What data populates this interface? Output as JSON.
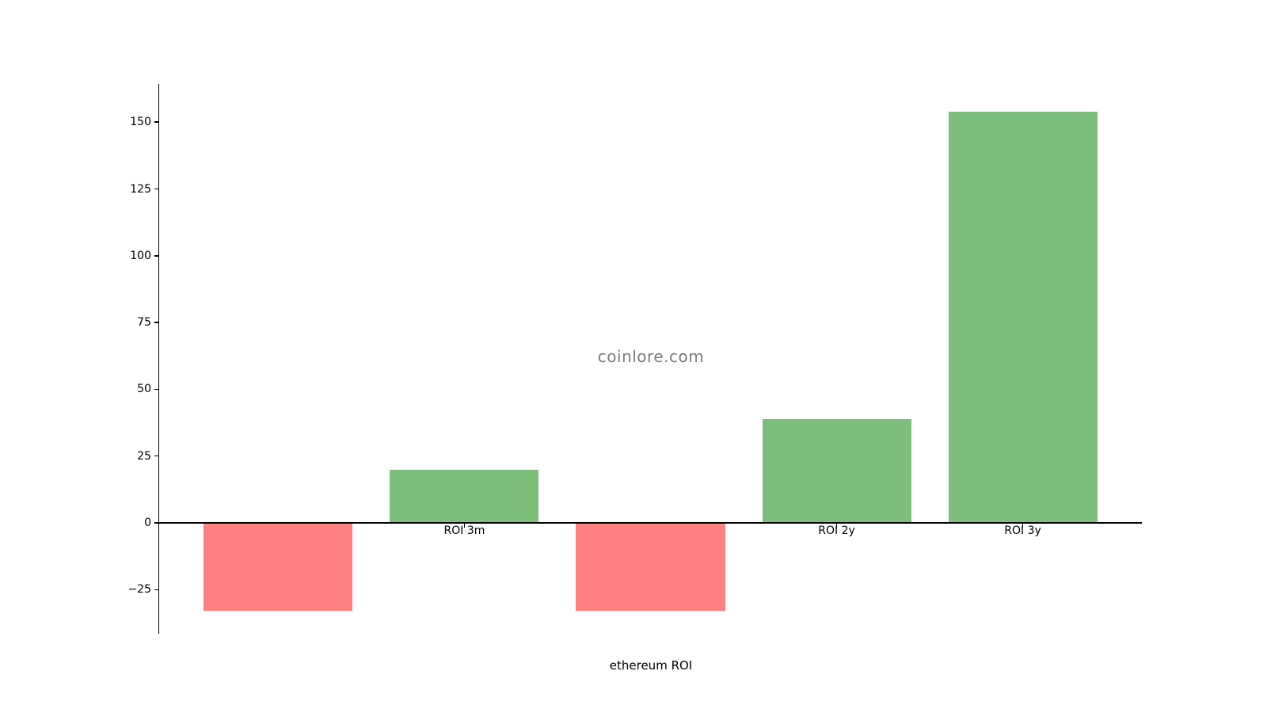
{
  "page": {
    "background_color": "#ffffff"
  },
  "chart_data": {
    "type": "bar",
    "title": "",
    "xlabel": "ethereum ROI",
    "ylabel": "",
    "watermark": "coinlore.com",
    "categories": [
      "",
      "ROI 3m",
      "",
      "ROI 2y",
      "ROI 3y"
    ],
    "values": [
      -33,
      20,
      -33,
      39,
      154
    ],
    "bar_colors": [
      "#ff8080",
      "#7dbe7d",
      "#ff8080",
      "#7dbe7d",
      "#7dbe7d"
    ],
    "negative_color": "#ff8080",
    "positive_color": "#7dbe7d",
    "x_positions": [
      0,
      1,
      2,
      3,
      4
    ],
    "bar_width": 0.8,
    "yticks": [
      150,
      125,
      100,
      75,
      50,
      25,
      0,
      -25
    ],
    "ytick_labels": [
      "150",
      "125",
      "100",
      "75",
      "50",
      "25",
      "0",
      "−25"
    ],
    "ylim": [
      -41.5,
      164.3
    ],
    "xlim": [
      -0.64,
      4.64
    ],
    "grid": false,
    "legend": false,
    "axis_color": "#000000",
    "tick_text_color": "#000000",
    "watermark_color": "#7b7b7b"
  }
}
